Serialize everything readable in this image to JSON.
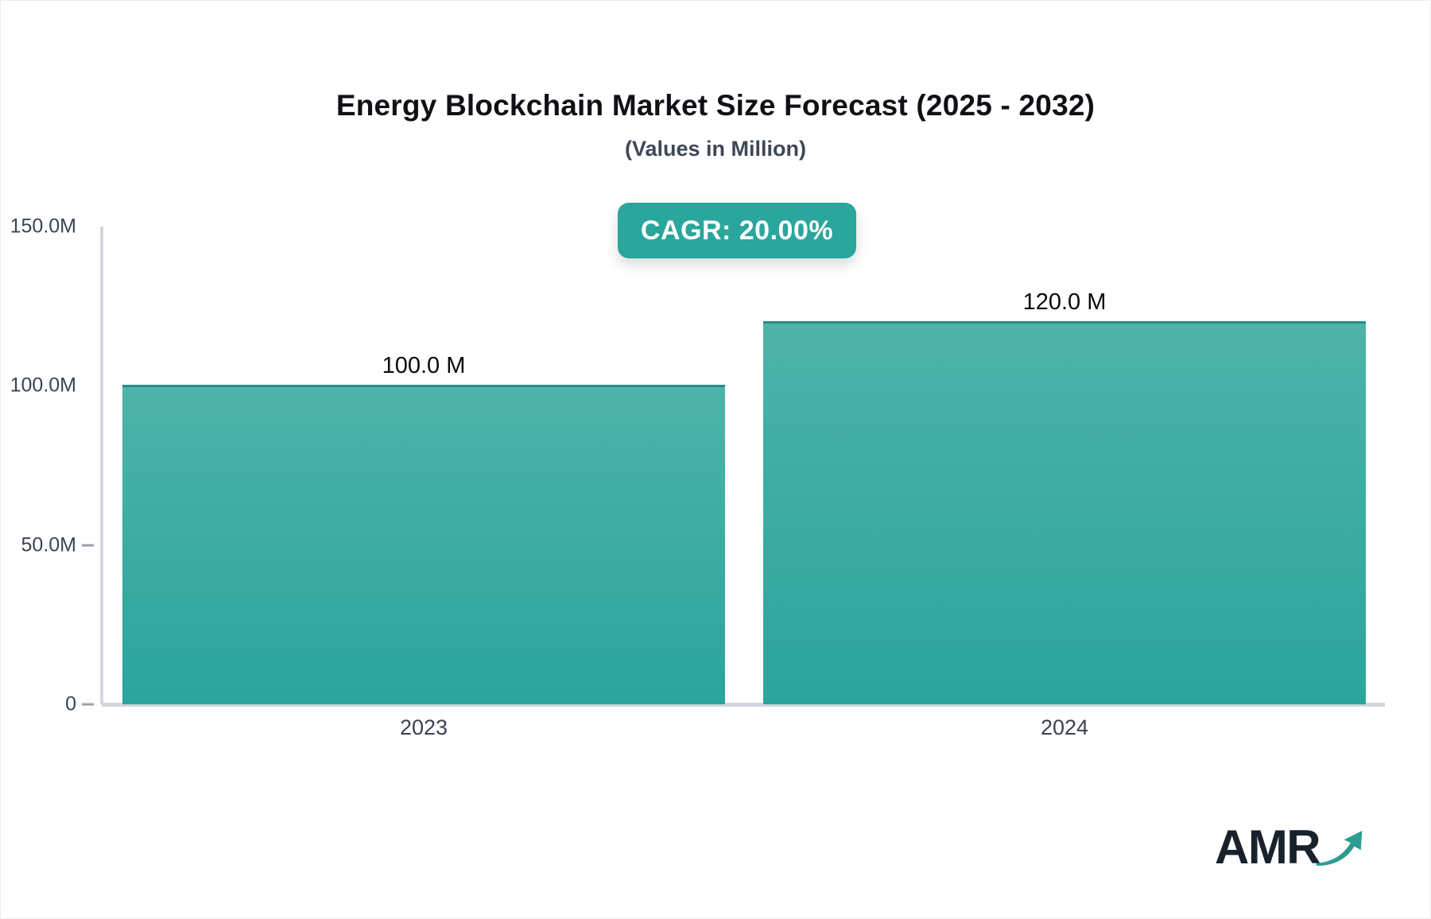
{
  "chart_data": {
    "type": "bar",
    "title": "Energy Blockchain Market Size Forecast (2025 - 2032)",
    "subtitle": "(Values in Million)",
    "cagr_label": "CAGR: 20.00%",
    "categories": [
      "2023",
      "2024"
    ],
    "values": [
      100.0,
      120.0
    ],
    "value_labels": [
      "100.0 M",
      "120.0 M"
    ],
    "unit": "Million",
    "ylim": [
      0,
      150
    ],
    "yticks": [
      {
        "label": "150.0M",
        "value": 150,
        "tick": false
      },
      {
        "label": "100.0M",
        "value": 100,
        "tick": false
      },
      {
        "label": "50.0M",
        "value": 50,
        "tick": true
      },
      {
        "label": "0",
        "value": 0,
        "tick": true
      }
    ],
    "grid": false,
    "legend": "none",
    "colors": {
      "badge_bg": "#2aa69c",
      "badge_text": "#ffffff",
      "bar_gradient_top": "#4eb3a9",
      "bar_gradient_bottom": "#2ba59c",
      "bar_border_top": "#2a8d84",
      "axis": "#d3d7dd",
      "tick": "#9aa1a9",
      "title": "#0f1115",
      "subtitle": "#3e4756",
      "axis_label": "#3b4553"
    }
  },
  "logo": {
    "text": "AMR"
  }
}
